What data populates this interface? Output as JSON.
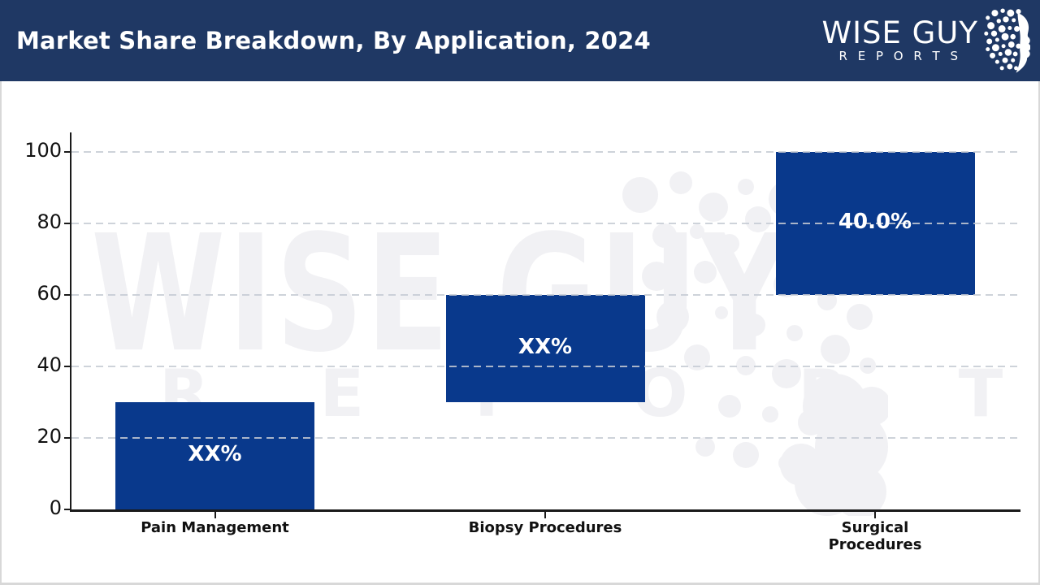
{
  "header": {
    "title": "Market Share Breakdown, By Application, 2024",
    "logo": {
      "primary": "WISE GUY",
      "secondary": "R E P O R T S"
    }
  },
  "watermark": {
    "primary": "WISE GUY",
    "secondary": "R E P O R T S"
  },
  "chart_data": {
    "type": "bar",
    "subtype": "floating-bar-waterfall",
    "title": "Market Share Breakdown, By Application, 2024",
    "categories": [
      "Pain Management",
      "Biopsy Procedures",
      "Surgical Procedures"
    ],
    "category_display": [
      "Pain Management",
      "Biopsy Procedures",
      "Surgical\nProcedures"
    ],
    "series": [
      {
        "name": "Market Share (%)",
        "segments": [
          {
            "category": "Pain Management",
            "start": 0,
            "end": 30,
            "label": "XX%"
          },
          {
            "category": "Biopsy Procedures",
            "start": 30,
            "end": 60,
            "label": "XX%"
          },
          {
            "category": "Surgical Procedures",
            "start": 60,
            "end": 100,
            "label": "40.0%"
          }
        ]
      }
    ],
    "xlabel": "",
    "ylabel": "",
    "ylim": [
      0,
      105
    ],
    "yticks": [
      0,
      20,
      40,
      60,
      80,
      100
    ],
    "grid": "horizontal-dashed",
    "legend": "none",
    "bar_color": "#09398c",
    "bar_label_color": "#ffffff"
  },
  "colors": {
    "header_bg": "#1f3864",
    "bar_blue": "#09398c",
    "axis": "#1a1a1a",
    "text": "#111111",
    "gridline": "#d9dce1",
    "watermark": "#f1f1f4",
    "frame_border": "#d8d8d8"
  }
}
